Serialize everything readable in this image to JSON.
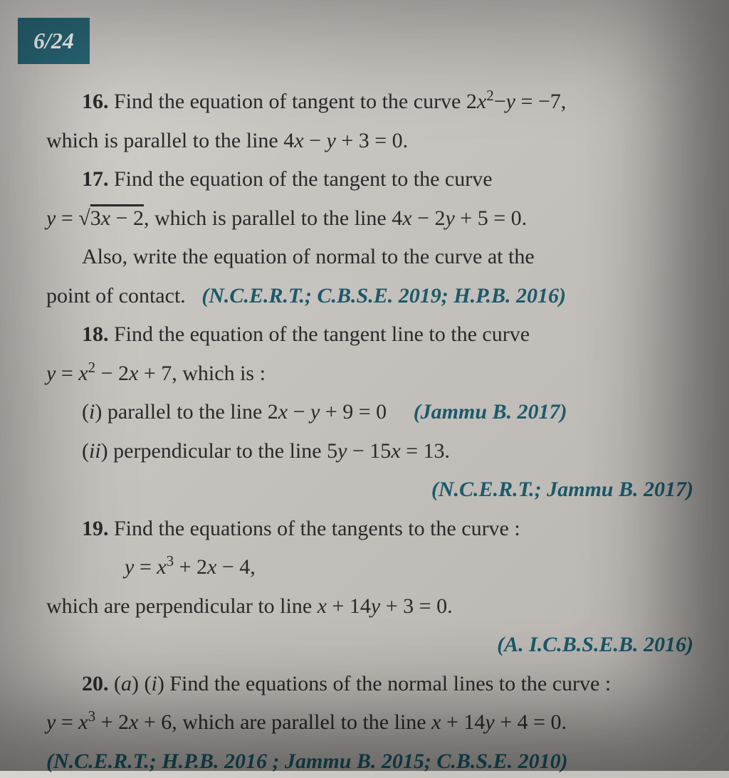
{
  "page_badge": "6/24",
  "background_gradient": [
    "#d8d4d0",
    "#c8c4c0",
    "#b8b4b0"
  ],
  "badge_color": "#2a6a7a",
  "text_color": "#2a2a2a",
  "source_color": "#1a5a6a",
  "body_fontsize": 30,
  "badge_fontsize": 32,
  "questions": {
    "q16": {
      "num": "16.",
      "text_a": "Find the equation of tangent to the curve ",
      "math_a": "2x² − y = −7,",
      "text_b": "which is parallel to the line ",
      "math_b": "4x − y + 3 = 0."
    },
    "q17": {
      "num": "17.",
      "text_a": "Find the equation of the tangent to the curve",
      "math_a_pre": "y = ",
      "math_a_sqrt": "3x − 2",
      "text_b": ", which is parallel to the line ",
      "math_b": "4x − 2y + 5 = 0.",
      "text_c": "Also, write the equation of normal to the curve at the point of contact.",
      "source": "(N.C.E.R.T.; C.B.S.E. 2019; H.P.B. 2016)"
    },
    "q18": {
      "num": "18.",
      "text_a": "Find the equation of the tangent line to the curve",
      "math_a": "y = x² − 2x + 7,",
      "text_b": "which is :",
      "part_i_label": "(i)",
      "part_i_text": "parallel to the line ",
      "part_i_math": "2x − y + 9 = 0",
      "part_i_source": "(Jammu B. 2017)",
      "part_ii_label": "(ii)",
      "part_ii_text": "perpendicular to the line ",
      "part_ii_math": "5y − 15x = 13.",
      "part_ii_source": "(N.C.E.R.T.; Jammu B. 2017)"
    },
    "q19": {
      "num": "19.",
      "text_a": "Find the equations of the tangents to the curve :",
      "math_a": "y = x³ + 2x − 4,",
      "text_b": "which are perpendicular to line ",
      "math_b": "x + 14y + 3 = 0.",
      "source": "(A. I.C.B.S.E.B. 2016)"
    },
    "q20": {
      "num": "20.",
      "part_label": "(a) (i)",
      "text_a": "Find the equations of the normal lines to the curve :",
      "math_a": "y = x³ + 2x + 6,",
      "text_b": "which are parallel to the line ",
      "math_b": "x + 14y + 4 = 0.",
      "source": "(N.C.E.R.T.; H.P.B. 2016 ; Jammu B. 2015; C.B.S.E. 2010)"
    }
  }
}
